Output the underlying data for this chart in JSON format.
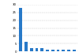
{
  "values": [
    28,
    6,
    2,
    2,
    2,
    1,
    1,
    1,
    1,
    1,
    1
  ],
  "bar_color": "#2879c8",
  "background_color": "#ffffff",
  "grid_color": "#c8c8c8",
  "ylim": [
    0,
    30
  ],
  "yticks": [
    0,
    5,
    10,
    15,
    20,
    25,
    30
  ],
  "ytick_fontsize": 2.8,
  "bar_width": 0.55
}
